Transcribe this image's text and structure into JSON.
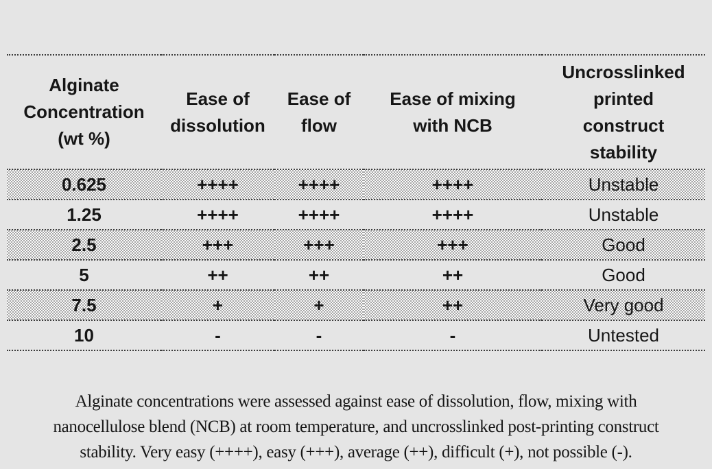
{
  "colors": {
    "page-bg": "#e5e5e5",
    "ink": "#161616",
    "rule": "#3c3c3c",
    "pattern-dark": "#a6a6a6",
    "pattern-light": "#fcfcfc"
  },
  "table": {
    "columns": [
      {
        "id": "concentration",
        "label": "Alginate\nConcentration\n(wt %)"
      },
      {
        "id": "dissolution",
        "label": "Ease of\ndissolution"
      },
      {
        "id": "flow",
        "label": "Ease of\nflow"
      },
      {
        "id": "mixing",
        "label": "Ease of mixing\nwith NCB"
      },
      {
        "id": "stability",
        "label": "Uncrosslinked\nprinted\nconstruct\nstability"
      }
    ],
    "rows": [
      {
        "concentration": "0.625",
        "dissolution": "++++",
        "flow": "++++",
        "mixing": "++++",
        "stability": "Unstable"
      },
      {
        "concentration": "1.25",
        "dissolution": "++++",
        "flow": "++++",
        "mixing": "++++",
        "stability": "Unstable"
      },
      {
        "concentration": "2.5",
        "dissolution": "+++",
        "flow": "+++",
        "mixing": "+++",
        "stability": "Good"
      },
      {
        "concentration": "5",
        "dissolution": "++",
        "flow": "++",
        "mixing": "++",
        "stability": "Good"
      },
      {
        "concentration": "7.5",
        "dissolution": "+",
        "flow": "+",
        "mixing": "++",
        "stability": "Very good"
      },
      {
        "concentration": "10",
        "dissolution": "-",
        "flow": "-",
        "mixing": "-",
        "stability": "Untested"
      }
    ]
  },
  "caption": {
    "text": "Alginate concentrations were assessed against ease of dissolution, flow, mixing with\nnanocellulose blend (NCB) at room temperature, and uncrosslinked post-printing construct\nstability. Very easy (++++), easy (+++), average (++), difficult (+), not possible (-)."
  }
}
